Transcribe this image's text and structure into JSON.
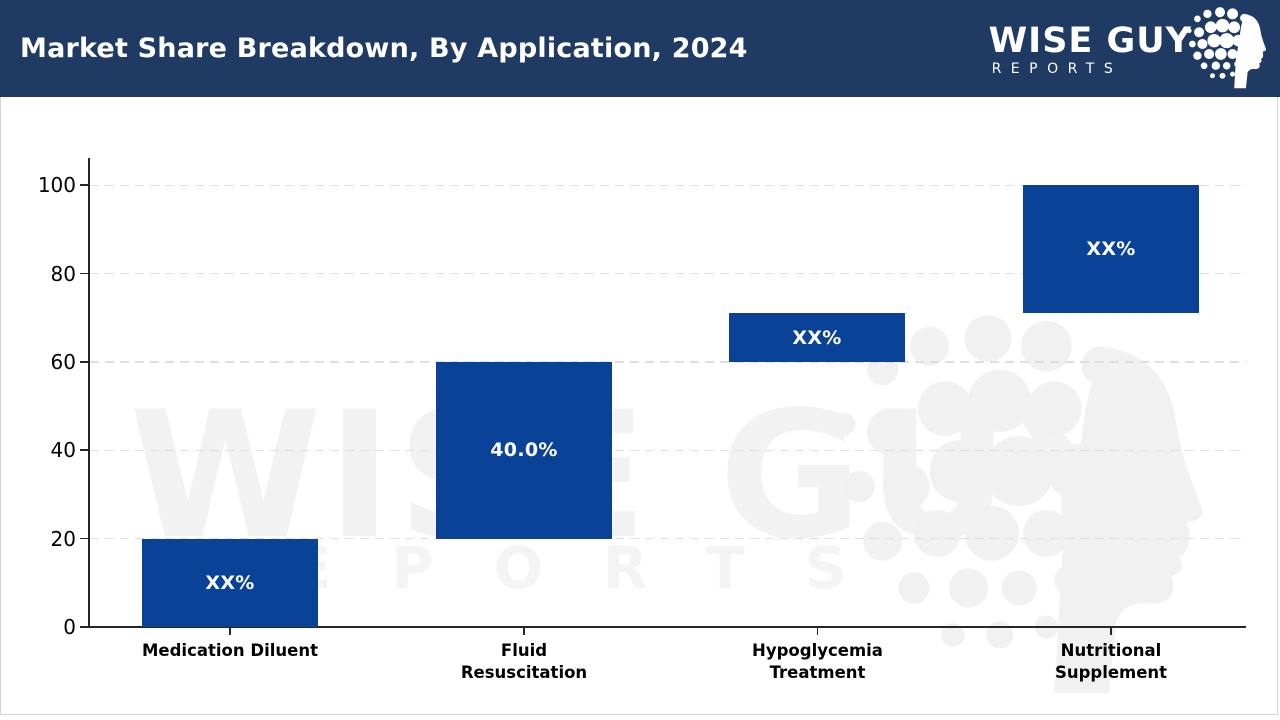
{
  "header": {
    "title": "Market Share Breakdown, By Application, 2024",
    "bg_color": "#1f3a63",
    "brand": {
      "line1": "WISE GUY",
      "line2": "REPORTS"
    }
  },
  "watermark": {
    "line1": "WISE GUY",
    "line2": "REPORTS"
  },
  "chart_data": {
    "type": "bar",
    "subtype": "waterfall",
    "title": "Market Share Breakdown, By Application, 2024",
    "categories": [
      "Medication Diluent",
      "Fluid\nResuscitation",
      "Hypoglycemia\nTreatment",
      "Nutritional\nSupplement"
    ],
    "segments": [
      {
        "category": "Medication Diluent",
        "start": 0,
        "end": 20,
        "label": "XX%"
      },
      {
        "category": "Fluid Resuscitation",
        "start": 20,
        "end": 60,
        "label": "40.0%"
      },
      {
        "category": "Hypoglycemia Treatment",
        "start": 60,
        "end": 71,
        "label": "XX%"
      },
      {
        "category": "Nutritional Supplement",
        "start": 71,
        "end": 100,
        "label": "XX%"
      }
    ],
    "bar_labels": [
      "XX%",
      "40.0%",
      "XX%",
      "XX%"
    ],
    "y_ticks": [
      0,
      20,
      40,
      60,
      80,
      100
    ],
    "ylim": [
      0,
      106
    ],
    "xlabel": "",
    "ylabel": "",
    "bar_color": "#0a4298",
    "grid": "horizontal-dashed",
    "legend": "none"
  }
}
